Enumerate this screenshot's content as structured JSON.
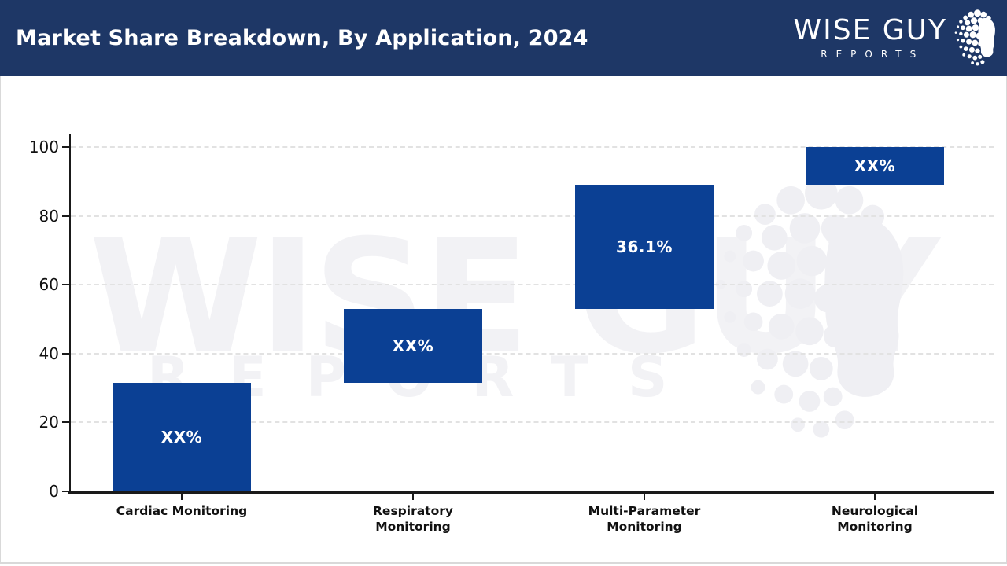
{
  "header": {
    "title": "Market Share Breakdown, By Application, 2024",
    "logo": {
      "line1": "WISE GUY",
      "line2": "REPORTS"
    }
  },
  "watermark": {
    "line1": "WISE GUY",
    "line2": "REPORTS"
  },
  "colors": {
    "header_bg": "#1e3766",
    "bar": "#0b4094",
    "grid": "#e2e2e2",
    "axis": "#1a1a1a",
    "bar_label_text": "#ffffff",
    "watermark_text": "#f2f2f5"
  },
  "chart_data": {
    "type": "bar",
    "subtype": "waterfall",
    "title": "Market Share Breakdown, By Application, 2024",
    "categories": [
      "Cardiac Monitoring",
      "Respiratory Monitoring",
      "Multi-Parameter Monitoring",
      "Neurological Monitoring"
    ],
    "category_label_lines": [
      [
        "Cardiac Monitoring"
      ],
      [
        "Respiratory",
        "Monitoring"
      ],
      [
        "Multi-Parameter",
        "Monitoring"
      ],
      [
        "Neurological",
        "Monitoring"
      ]
    ],
    "segments": [
      {
        "category": "Cardiac Monitoring",
        "start": 0,
        "end": 31.5,
        "value_label": "XX%"
      },
      {
        "category": "Respiratory Monitoring",
        "start": 31.5,
        "end": 53.0,
        "value_label": "XX%"
      },
      {
        "category": "Multi-Parameter Monitoring",
        "start": 53.0,
        "end": 89.1,
        "value_label": "36.1%"
      },
      {
        "category": "Neurological Monitoring",
        "start": 89.1,
        "end": 100,
        "value_label": "XX%"
      }
    ],
    "values": [
      31.5,
      21.5,
      36.1,
      10.9
    ],
    "xlabel": "",
    "ylabel": "",
    "ylim": [
      0,
      100
    ],
    "yticks": [
      0,
      20,
      40,
      60,
      80,
      100
    ],
    "grid": "horizontal-dashed",
    "legend": "none"
  }
}
